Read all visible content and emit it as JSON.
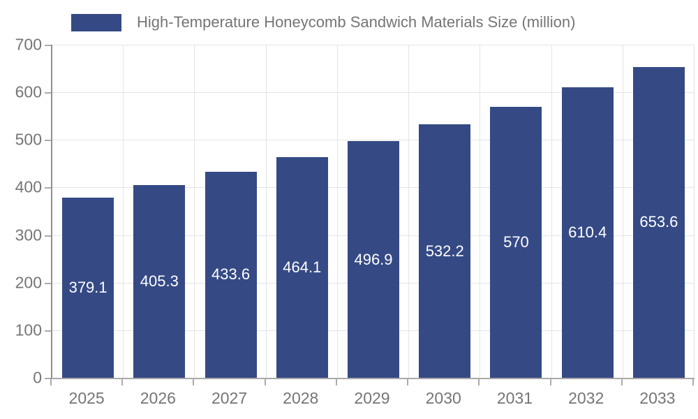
{
  "chart_data": {
    "type": "bar",
    "title": "High-Temperature Honeycomb Sandwich Materials Size (million)",
    "categories": [
      "2025",
      "2026",
      "2027",
      "2028",
      "2029",
      "2030",
      "2031",
      "2032",
      "2033"
    ],
    "values": [
      379.1,
      405.3,
      433.6,
      464.1,
      496.9,
      532.2,
      570,
      610.4,
      653.6
    ],
    "value_labels": [
      "379.1",
      "405.3",
      "433.6",
      "464.1",
      "496.9",
      "532.2",
      "570",
      "610.4",
      "653.6"
    ],
    "series_name": "High-Temperature Honeycomb Sandwich Materials Size (million)",
    "xlabel": "",
    "ylabel": "",
    "ylim": [
      0,
      700
    ],
    "yticks": [
      0,
      100,
      200,
      300,
      400,
      500,
      600,
      700
    ],
    "grid": true,
    "legend_position": "top-left",
    "colors": {
      "bar": "#354A85",
      "bar_value_text": "#ffffff",
      "axis_text": "#757575",
      "legend_text": "#757575",
      "grid_line": "#e4e4e4",
      "y_axis_line": "#8f8f8f",
      "x_axis_line": "#a9a9a9",
      "tick_mark": "#ababab"
    }
  }
}
